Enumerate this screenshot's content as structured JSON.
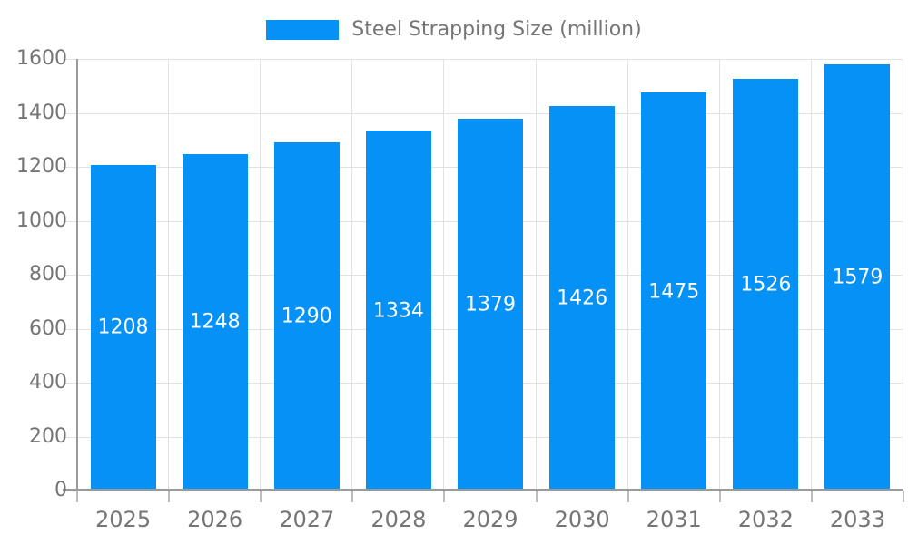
{
  "legend": {
    "label": "Steel Strapping Size (million)"
  },
  "chart_data": {
    "type": "bar",
    "title": "Steel Strapping Size (million)",
    "series_name": "Steel Strapping Size (million)",
    "categories": [
      "2025",
      "2026",
      "2027",
      "2028",
      "2029",
      "2030",
      "2031",
      "2032",
      "2033"
    ],
    "values": [
      1208,
      1248,
      1290,
      1334,
      1379,
      1426,
      1475,
      1526,
      1579
    ],
    "value_labels": [
      "1208",
      "1248",
      "1290",
      "1334",
      "1379",
      "1426",
      "1475",
      "1526",
      "1579"
    ],
    "xlabel": "",
    "ylabel": "",
    "ylim": [
      0,
      1600
    ],
    "ytick_step": 200,
    "yticks": [
      0,
      200,
      400,
      600,
      800,
      1000,
      1200,
      1400,
      1600
    ],
    "grid": true,
    "legend_position": "top-center",
    "value_label_position": "inside-middle",
    "colors": {
      "bar": "#0591f5",
      "axis_line": "#9a9a9a",
      "gridline": "#e2e2e2",
      "tick": "#bdbdbd",
      "axis_text": "#757575",
      "value_text": "#ffffff",
      "background": "#ffffff"
    }
  }
}
